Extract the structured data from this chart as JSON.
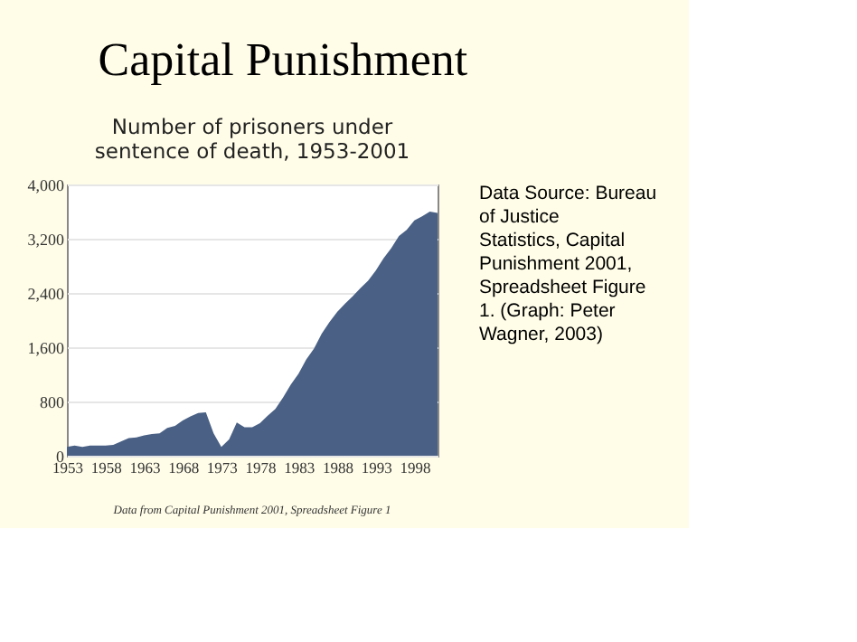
{
  "chart_data": {
    "type": "area",
    "title": "Capital Punishment",
    "subtitle": "Number of prisoners under sentence of death, 1953-2001",
    "x": [
      1953,
      1954,
      1955,
      1956,
      1957,
      1958,
      1959,
      1960,
      1961,
      1962,
      1963,
      1964,
      1965,
      1966,
      1967,
      1968,
      1969,
      1970,
      1971,
      1972,
      1973,
      1974,
      1975,
      1976,
      1977,
      1978,
      1979,
      1980,
      1981,
      1982,
      1983,
      1984,
      1985,
      1986,
      1987,
      1988,
      1989,
      1990,
      1991,
      1992,
      1993,
      1994,
      1995,
      1996,
      1997,
      1998,
      1999,
      2000,
      2001
    ],
    "series": [
      {
        "color": "#4a6185",
        "values": [
          130,
          150,
          130,
          150,
          150,
          150,
          160,
          210,
          260,
          270,
          300,
          320,
          330,
          410,
          440,
          520,
          580,
          630,
          640,
          330,
          130,
          240,
          490,
          420,
          420,
          480,
          590,
          690,
          860,
          1050,
          1210,
          1420,
          1580,
          1800,
          1970,
          2120,
          2240,
          2350,
          2470,
          2580,
          2730,
          2910,
          3060,
          3240,
          3330,
          3470,
          3530,
          3600,
          3580
        ]
      }
    ],
    "xlim": [
      1953,
      2001
    ],
    "xticks": [
      1953,
      1958,
      1963,
      1968,
      1973,
      1978,
      1983,
      1988,
      1993,
      1998
    ],
    "ylim": [
      0,
      4000
    ],
    "yticks": [
      0,
      800,
      {
        "value": 1600,
        "label": "1,600"
      },
      {
        "value": 2400,
        "label": "2,400"
      },
      {
        "value": 3200,
        "label": "3,200"
      },
      {
        "value": 4000,
        "label": "4,000"
      }
    ],
    "grid": "y",
    "annotations": [
      "Data from Capital Punishment 2001, Spreadsheet Figure 1",
      "Data Source: Bureau of Justice Statistics, Capital Punishment 2001, Spreadsheet Figure 1. (Graph: Peter Wagner, 2003)"
    ]
  }
}
